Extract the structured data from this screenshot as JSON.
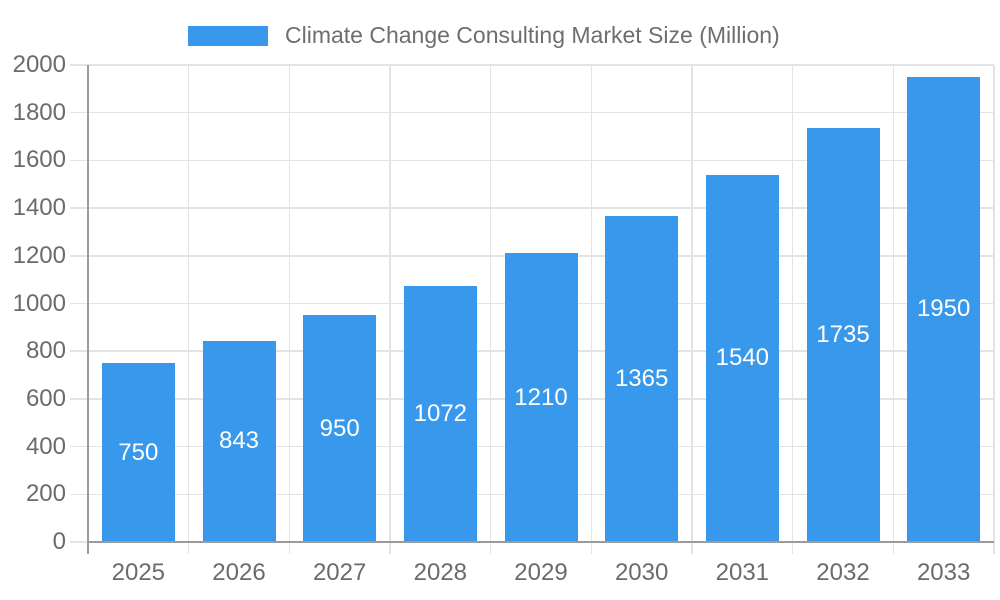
{
  "chart_data": {
    "type": "bar",
    "title": "Climate Change Consulting Market Size (Million)",
    "legend_entries": [
      "Climate Change Consulting Market Size (Million)"
    ],
    "legend_position": "top",
    "categories": [
      "2025",
      "2026",
      "2027",
      "2028",
      "2029",
      "2030",
      "2031",
      "2032",
      "2033"
    ],
    "series": [
      {
        "name": "Climate Change Consulting Market Size (Million)",
        "values": [
          750,
          843,
          950,
          1072,
          1210,
          1365,
          1540,
          1735,
          1950
        ]
      }
    ],
    "value_labels": [
      "750",
      "843",
      "950",
      "1072",
      "1210",
      "1365",
      "1540",
      "1735",
      "1950"
    ],
    "value_label_style": "white-centered-inside-bar",
    "xlabel": "",
    "ylabel": "",
    "ylim": [
      0,
      2000
    ],
    "yticks": [
      0,
      200,
      400,
      600,
      800,
      1000,
      1200,
      1400,
      1600,
      1800,
      2000
    ],
    "grid": true,
    "colors": {
      "bar": "#3898EC",
      "grid": "#E3E3E3",
      "axis": "#9A9A9A",
      "tick": "#D4D4D4",
      "tick_text": "#6B6B6B",
      "title_text": "#6E6E6E",
      "value_text": "#FFFFFF",
      "background": "#FFFFFF"
    }
  }
}
